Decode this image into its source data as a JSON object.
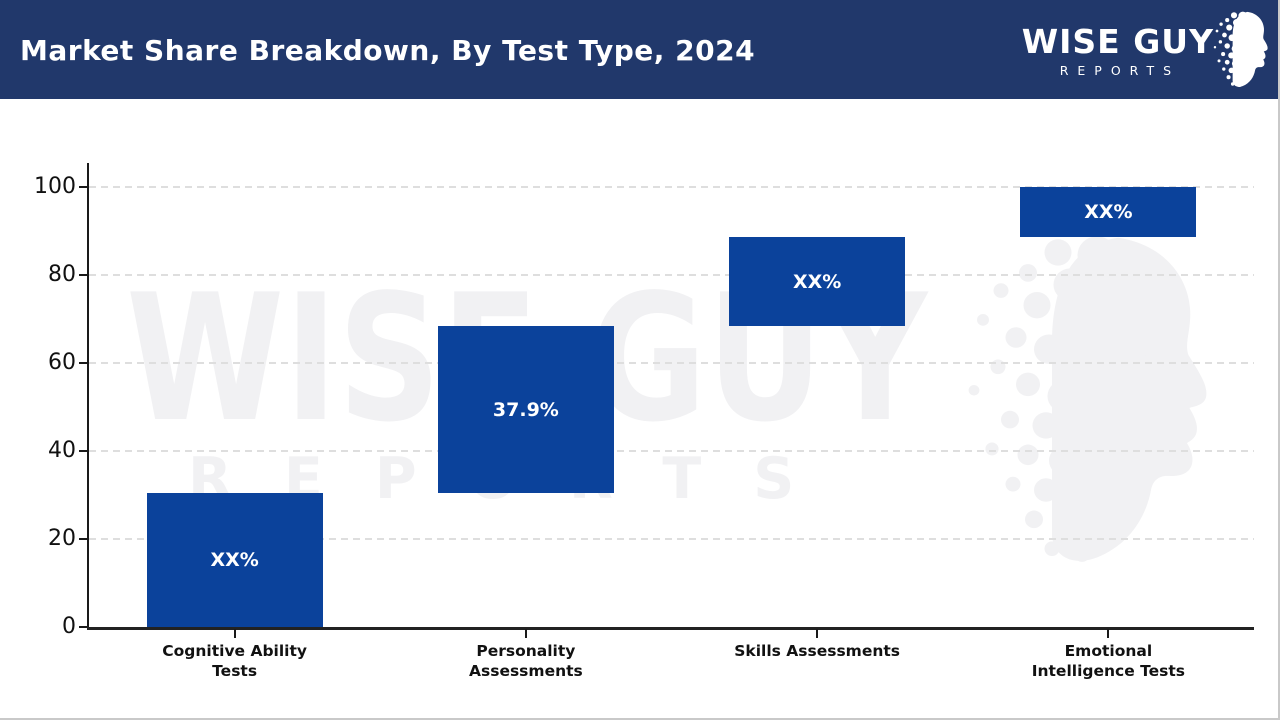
{
  "header": {
    "title": "Market Share Breakdown, By Test Type, 2024",
    "logo": {
      "brand": "WISE GUY",
      "sub": "REPORTS"
    }
  },
  "watermark": {
    "brand": "WISE GUY",
    "sub": "REPORTS"
  },
  "chart_data": {
    "type": "bar",
    "subtype": "waterfall",
    "title": "Market Share Breakdown, By Test Type, 2024",
    "xlabel": "",
    "ylabel": "",
    "grid": "horizontal-dashed",
    "legend": null,
    "ylim": [
      0,
      105.5
    ],
    "y_ticks": [
      0,
      20,
      40,
      60,
      80,
      100
    ],
    "categories": [
      {
        "lines": [
          "Cognitive Ability",
          "Tests"
        ]
      },
      {
        "lines": [
          "Personality",
          "Assessments"
        ]
      },
      {
        "lines": [
          "Skills Assessments"
        ]
      },
      {
        "lines": [
          "Emotional",
          "Intelligence Tests"
        ]
      }
    ],
    "segments": [
      {
        "label": "XX%",
        "start": 0,
        "end": 30.4
      },
      {
        "label": "37.9%",
        "start": 30.4,
        "end": 68.3
      },
      {
        "label": "XX%",
        "start": 68.3,
        "end": 88.6
      },
      {
        "label": "XX%",
        "start": 88.6,
        "end": 100
      }
    ],
    "bar_color": "#0b429b",
    "bar_label_color": "#ffffff"
  },
  "colors": {
    "header_bg": "#21386b",
    "watermark": "#f1f1f3",
    "grid": "#dedede",
    "axis": "#1a1a1a",
    "text": "#111111",
    "border": "#c9c9c9"
  }
}
